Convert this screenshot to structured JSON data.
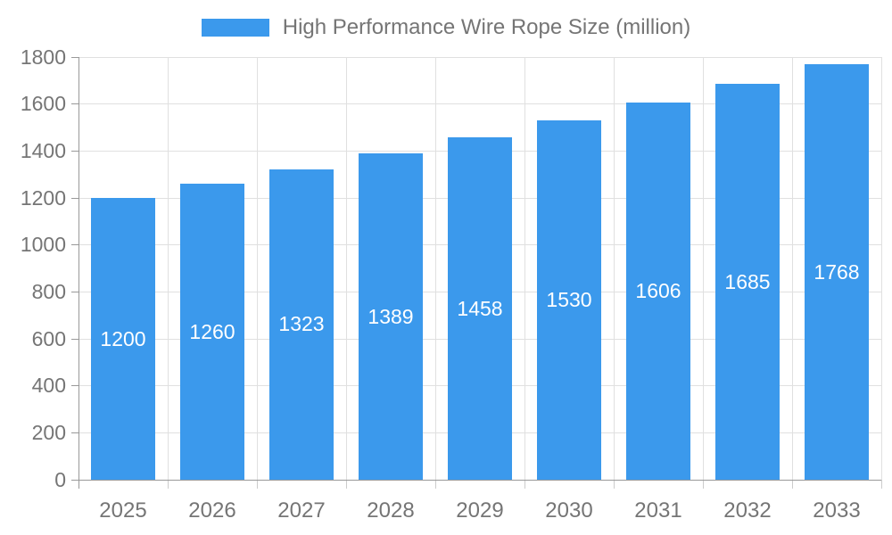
{
  "legend": {
    "label": "High Performance Wire Rope Size (million)"
  },
  "chart_data": {
    "type": "bar",
    "title": "High Performance Wire Rope Size (million)",
    "categories": [
      "2025",
      "2026",
      "2027",
      "2028",
      "2029",
      "2030",
      "2031",
      "2032",
      "2033"
    ],
    "values": [
      1200,
      1260,
      1323,
      1389,
      1458,
      1530,
      1606,
      1685,
      1768
    ],
    "series": [
      {
        "name": "High Performance Wire Rope Size (million)",
        "values": [
          1200,
          1260,
          1323,
          1389,
          1458,
          1530,
          1606,
          1685,
          1768
        ]
      }
    ],
    "xlabel": "",
    "ylabel": "",
    "ylim": [
      0,
      1800
    ],
    "ytick_step": 200,
    "grid": true,
    "legend_position": "top",
    "bar_labels_inside": true,
    "colors": {
      "bar": "#3B99EC",
      "bar_label": "#ffffff",
      "grid": "#E0E0E0",
      "axis_line": "#999999",
      "tick": "#CCCCCC",
      "axis_text": "#757575"
    }
  }
}
